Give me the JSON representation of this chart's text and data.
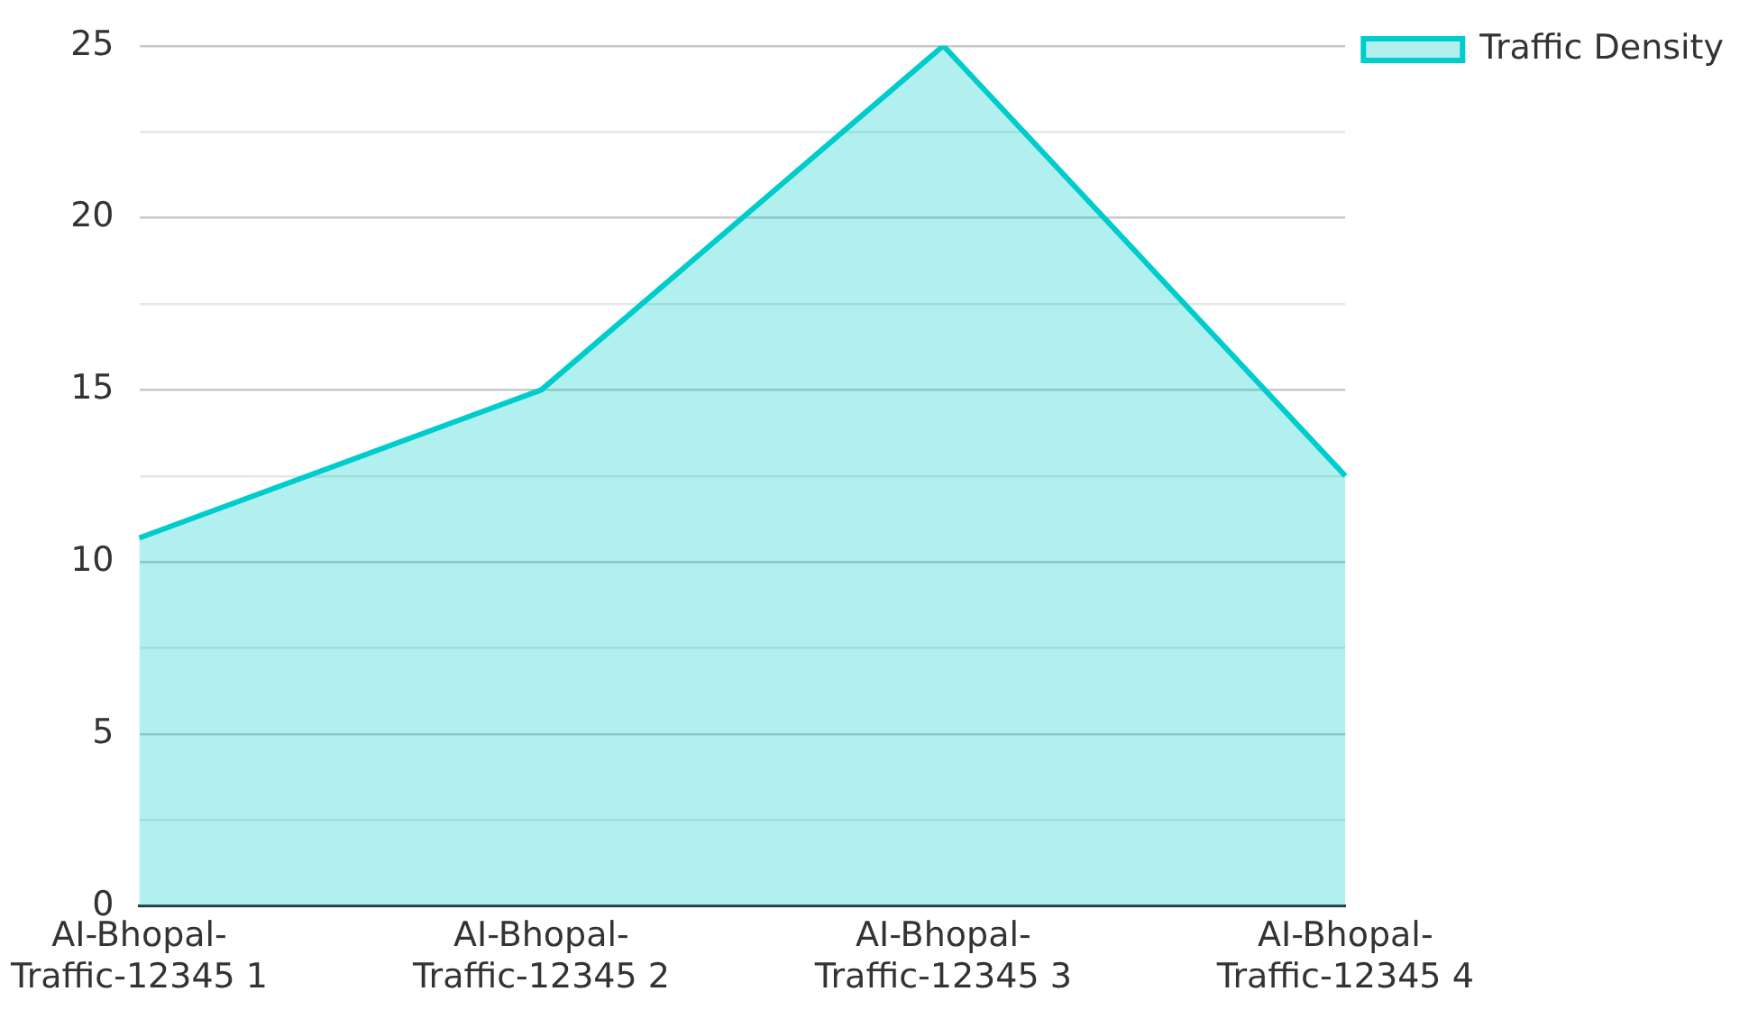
{
  "chart_data": {
    "type": "area",
    "categories": [
      "AI-Bhopal-Traffic-12345 1",
      "AI-Bhopal-Traffic-12345 2",
      "AI-Bhopal-Traffic-12345 3",
      "AI-Bhopal-Traffic-12345 4"
    ],
    "series": [
      {
        "name": "Traffic Density",
        "color": "#00cccc",
        "values": [
          10.7,
          15,
          25,
          12.5
        ]
      }
    ],
    "ylim": [
      0,
      25
    ],
    "yticks": [
      0,
      {
        "value": 2.5,
        "label": null
      },
      5,
      {
        "value": 7.5,
        "label": null
      },
      10,
      {
        "value": 12.5,
        "label": null
      },
      15,
      {
        "value": 17.5,
        "label": null
      },
      20,
      {
        "value": 22.5,
        "label": null
      },
      25
    ],
    "grid": "y",
    "legend": "top right",
    "marker": "none",
    "line_style": "solid"
  }
}
